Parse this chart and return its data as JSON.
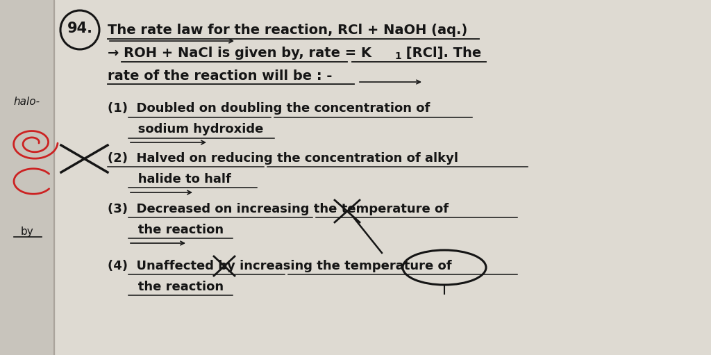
{
  "bg_color": "#dedad2",
  "left_strip_color": "#c8c4bc",
  "text_color": "#151515",
  "red_color": "#cc2222",
  "q_num": "94.",
  "line1": "The rate law for the reaction, RCl + NaOH (aq.)",
  "line2a": "→ ROH + NaCl is given by, rate = K",
  "line2_sub": "1",
  "line2b": " [RCl]. The",
  "line3": "rate of the reaction will be : -",
  "opt1a": "(1)  Doubled on doubling the concentration of",
  "opt1b": "       sodium hydroxide",
  "opt2a": "(2)  Halved on reducing the concentration of alkyl",
  "opt2b": "       halide to half",
  "opt3a": "(3)  Decreased on increasing the temperature of",
  "opt3b": "       the reaction",
  "opt4a": "(4)  Unaffected by increasing the temperature of",
  "opt4b": "       the reaction",
  "left_halo": "halo-",
  "left_by": "by",
  "fs_main": 14,
  "fs_opt": 13,
  "fs_num": 15
}
